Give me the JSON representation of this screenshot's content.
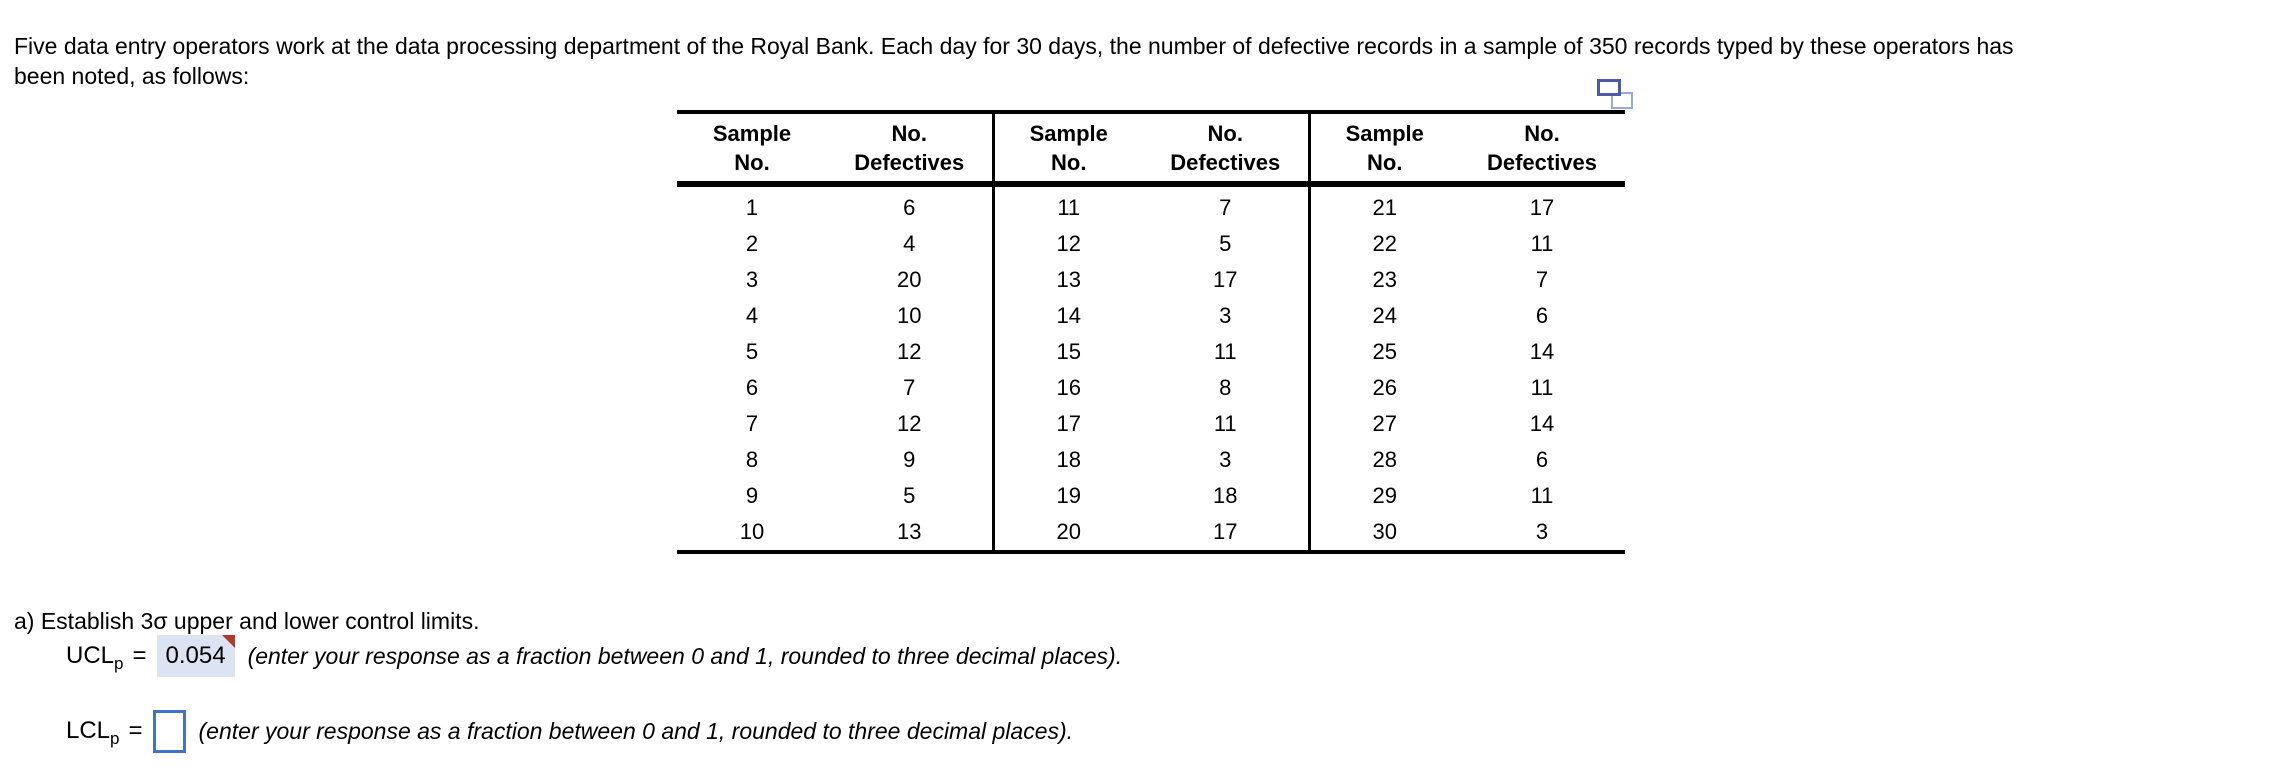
{
  "problem": {
    "intro": "Five data entry operators work at the data processing department of the Royal Bank. Each day for 30 days, the number of defective records in a sample of 350 records typed by these operators has\nbeen noted, as follows:"
  },
  "table": {
    "header_sample": "Sample\nNo.",
    "header_defectives": "No.\nDefectives",
    "groups": [
      {
        "rows": [
          [
            1,
            6
          ],
          [
            2,
            4
          ],
          [
            3,
            20
          ],
          [
            4,
            10
          ],
          [
            5,
            12
          ],
          [
            6,
            7
          ],
          [
            7,
            12
          ],
          [
            8,
            9
          ],
          [
            9,
            5
          ],
          [
            10,
            13
          ]
        ]
      },
      {
        "rows": [
          [
            11,
            7
          ],
          [
            12,
            5
          ],
          [
            13,
            17
          ],
          [
            14,
            3
          ],
          [
            15,
            11
          ],
          [
            16,
            8
          ],
          [
            17,
            11
          ],
          [
            18,
            3
          ],
          [
            19,
            18
          ],
          [
            20,
            17
          ]
        ]
      },
      {
        "rows": [
          [
            21,
            17
          ],
          [
            22,
            11
          ],
          [
            23,
            7
          ],
          [
            24,
            6
          ],
          [
            25,
            14
          ],
          [
            26,
            11
          ],
          [
            27,
            14
          ],
          [
            28,
            6
          ],
          [
            29,
            11
          ],
          [
            30,
            3
          ]
        ]
      }
    ]
  },
  "question_a": {
    "label": "a) Establish 3σ upper and lower control limits.",
    "ucl": {
      "name": "UCL",
      "sub": "p",
      "equals": "=",
      "value": "0.054",
      "instruction": "(enter your response as a fraction between 0 and 1, rounded to three decimal places)."
    },
    "lcl": {
      "name": "LCL",
      "sub": "p",
      "equals": "=",
      "value": "",
      "instruction": "(enter your response as a fraction between 0 and 1, rounded to three decimal places)."
    }
  },
  "icons": {
    "copy": "copy-icon",
    "incorrect_flag": "incorrect-flag-icon"
  },
  "colors": {
    "answer_highlight": "#dce3f2",
    "incorrect_flag": "#b23a2b",
    "input_border": "#4472c4",
    "copy_icon_front": "#4c5ba9",
    "copy_icon_back": "#9aa7d9",
    "table_border": "#000000"
  }
}
